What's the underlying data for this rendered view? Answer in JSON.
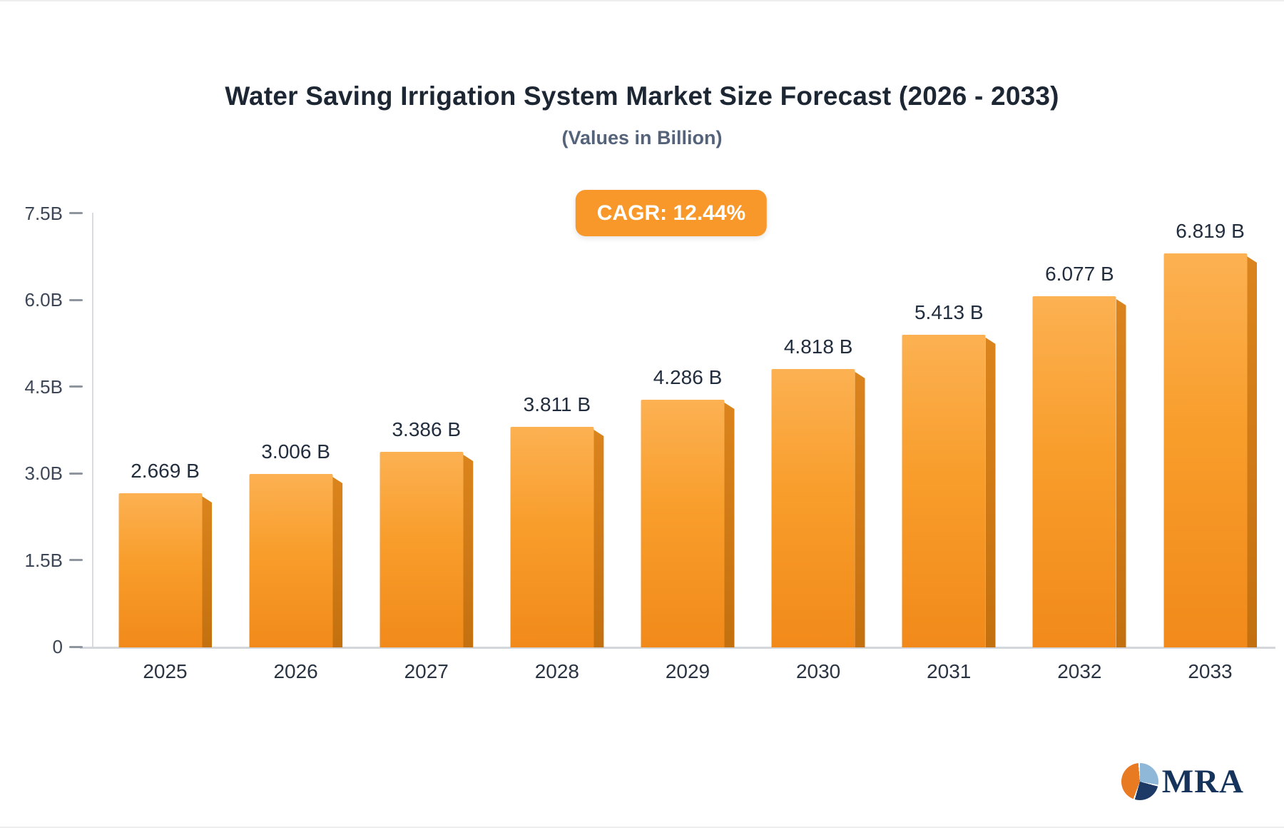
{
  "title": "Water Saving Irrigation System Market Size Forecast (2026 - 2033)",
  "subtitle": "(Values in Billion)",
  "cagr_label": "CAGR: 12.44%",
  "logo": {
    "text": "MRA"
  },
  "colors": {
    "badge": "#f8982a",
    "bar_face_top": "#fcb152",
    "bar_face_bottom": "#f18a1a",
    "bar_side": "#c3700f",
    "axis_line": "#d3d6da",
    "text_dark": "#1d2733"
  },
  "chart_data": {
    "type": "bar",
    "title": "Water Saving Irrigation System Market Size Forecast (2026 - 2033)",
    "subtitle": "(Values in Billion)",
    "xlabel": "",
    "ylabel": "",
    "ylim": [
      0,
      7.5
    ],
    "grid": false,
    "legend": false,
    "categories": [
      "2025",
      "2026",
      "2027",
      "2028",
      "2029",
      "2030",
      "2031",
      "2032",
      "2033"
    ],
    "values": [
      2.669,
      3.006,
      3.386,
      3.811,
      4.286,
      4.818,
      5.413,
      6.077,
      6.819
    ],
    "value_labels": [
      "2.669 B",
      "3.006 B",
      "3.386 B",
      "3.811 B",
      "4.286 B",
      "4.818 B",
      "5.413 B",
      "6.077 B",
      "6.819 B"
    ],
    "yticks": [
      {
        "label": "7.5B",
        "value": 7.5
      },
      {
        "label": "6.0B",
        "value": 6.0
      },
      {
        "label": "4.5B",
        "value": 4.5
      },
      {
        "label": "3.0B",
        "value": 3.0
      },
      {
        "label": "1.5B",
        "value": 1.5
      },
      {
        "label": "0",
        "value": 0
      }
    ],
    "annotations": [
      "CAGR: 12.44%"
    ]
  }
}
